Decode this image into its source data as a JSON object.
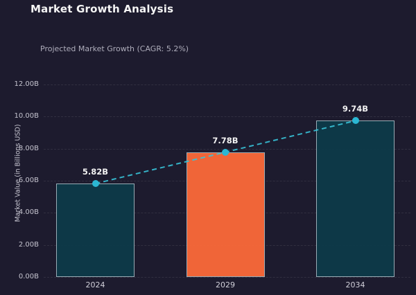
{
  "chart_data": {
    "type": "bar",
    "title": "Market Growth Analysis",
    "subtitle": "Projected Market Growth (CAGR: 5.2%)",
    "categories": [
      "2024",
      "2029",
      "2034"
    ],
    "values": [
      5.82,
      7.78,
      9.74
    ],
    "value_labels": [
      "5.82B",
      "7.78B",
      "9.74B"
    ],
    "xlabel": "",
    "ylabel": "Market Value (in Billions USD)",
    "ylim": [
      0,
      12
    ],
    "yticks": [
      0,
      2,
      4,
      6,
      8,
      10,
      12
    ],
    "ytick_labels": [
      "0.00B",
      "2.00B",
      "4.00B",
      "6.00B",
      "8.00B",
      "10.00B",
      "12.00B"
    ],
    "grid": true,
    "legend_position": "none",
    "bar_colors": [
      "#0d3a49",
      "#f96939",
      "#0d3a49"
    ],
    "bar_edge_color": "#9fb2bc",
    "trend_line": {
      "style": "dashed",
      "color": "#38c3d8",
      "marker": "circle",
      "marker_color": "#2bb7d3"
    }
  },
  "colors": {
    "background": "#1d1b2e",
    "title_text": "#f5f5f5",
    "subtitle_text": "#aeadbb",
    "axis_text": "#c6c5d0",
    "gridline": "rgba(255,255,255,0.09)"
  }
}
